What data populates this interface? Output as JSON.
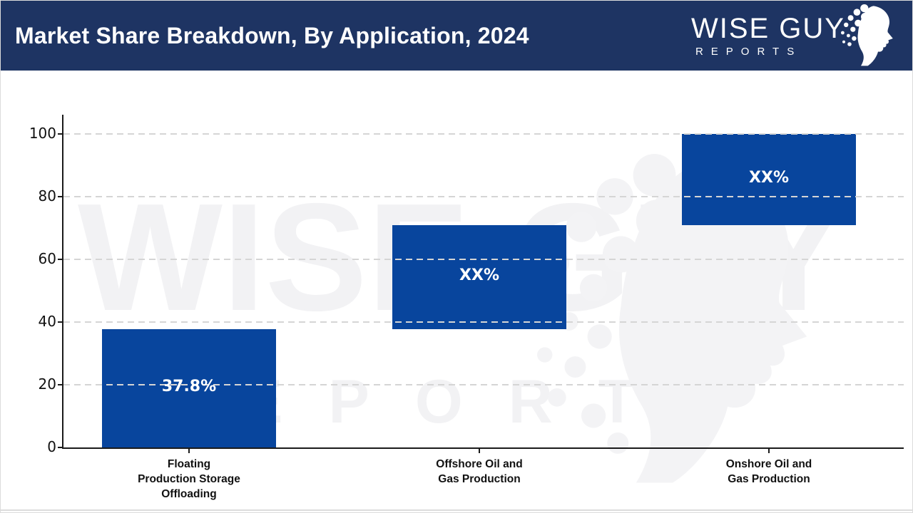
{
  "colors": {
    "header_bg": "#1e3463",
    "bar": "#08459d",
    "bar_label": "#ffffff",
    "axis": "#1a1a1a",
    "grid": "#d5d5d5",
    "watermark": "#f2f2f4",
    "tick_label": "#111111"
  },
  "header": {
    "title": "Market Share Breakdown, By Application, 2024",
    "logo_line1": "WISE GUY",
    "logo_line2": "REPORTS"
  },
  "watermark": {
    "line1": "WISE GUY",
    "line2": "REPORTS"
  },
  "chart_data": {
    "type": "bar",
    "variant": "floating-segment-waterfall",
    "title": "Market Share Breakdown, By Application, 2024",
    "categories": [
      [
        "Floating",
        "Production Storage",
        "Offloading"
      ],
      [
        "Offshore Oil and",
        "Gas Production"
      ],
      [
        "Onshore Oil and",
        "Gas Production"
      ]
    ],
    "segments": [
      {
        "start": 0,
        "end": 37.8,
        "label": "37.8%"
      },
      {
        "start": 37.8,
        "end": 71,
        "label": "XX%"
      },
      {
        "start": 71,
        "end": 100,
        "label": "XX%"
      }
    ],
    "yticks": [
      0,
      20,
      40,
      60,
      80,
      100
    ],
    "ylim": [
      0,
      106
    ],
    "xlabel": "",
    "ylabel": "",
    "grid": "horizontal-dashed",
    "legend": "none"
  }
}
